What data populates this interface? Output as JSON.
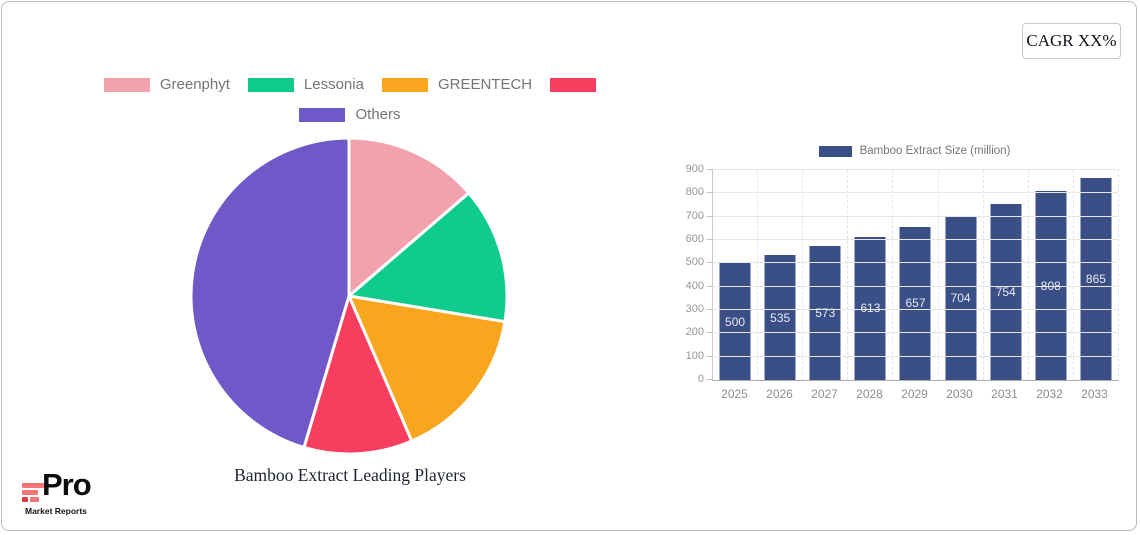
{
  "header": {
    "cagr_label": "CAGR XX%"
  },
  "logo": {
    "text": "Pro",
    "subtext": "Market Reports",
    "bar_color": "#f57676",
    "accent_color": "#e23b3b"
  },
  "chart_data": [
    {
      "type": "pie",
      "title": "Bamboo Extract Leading Players",
      "legend_position": "top",
      "slices": [
        {
          "label": "Greenphyt",
          "value": 13.7,
          "color": "#f2a2ac"
        },
        {
          "label": "Lessonia",
          "value": 13.9,
          "color": "#0fcb8e"
        },
        {
          "label": "GREENTECH",
          "value": 15.9,
          "color": "#f8a61d"
        },
        {
          "label": "",
          "value": 11.1,
          "color": "#f83e5e"
        },
        {
          "label": "Others",
          "value": 45.4,
          "color": "#6f59c8"
        }
      ],
      "legend_rows": [
        [
          0,
          1,
          2,
          3
        ],
        [
          4
        ]
      ]
    },
    {
      "type": "bar",
      "series_label": "Bamboo Extract Size (million)",
      "categories": [
        "2025",
        "2026",
        "2027",
        "2028",
        "2029",
        "2030",
        "2031",
        "2032",
        "2033"
      ],
      "values": [
        500,
        535,
        573,
        613,
        657,
        704,
        754,
        808,
        865
      ],
      "bar_color": "#3a4f86",
      "value_label_color": "#e8eaf2",
      "xlabel": "",
      "ylabel": "",
      "ylim": [
        0,
        900
      ],
      "ytick_step": 100,
      "grid": true,
      "legend_position": "top"
    }
  ]
}
